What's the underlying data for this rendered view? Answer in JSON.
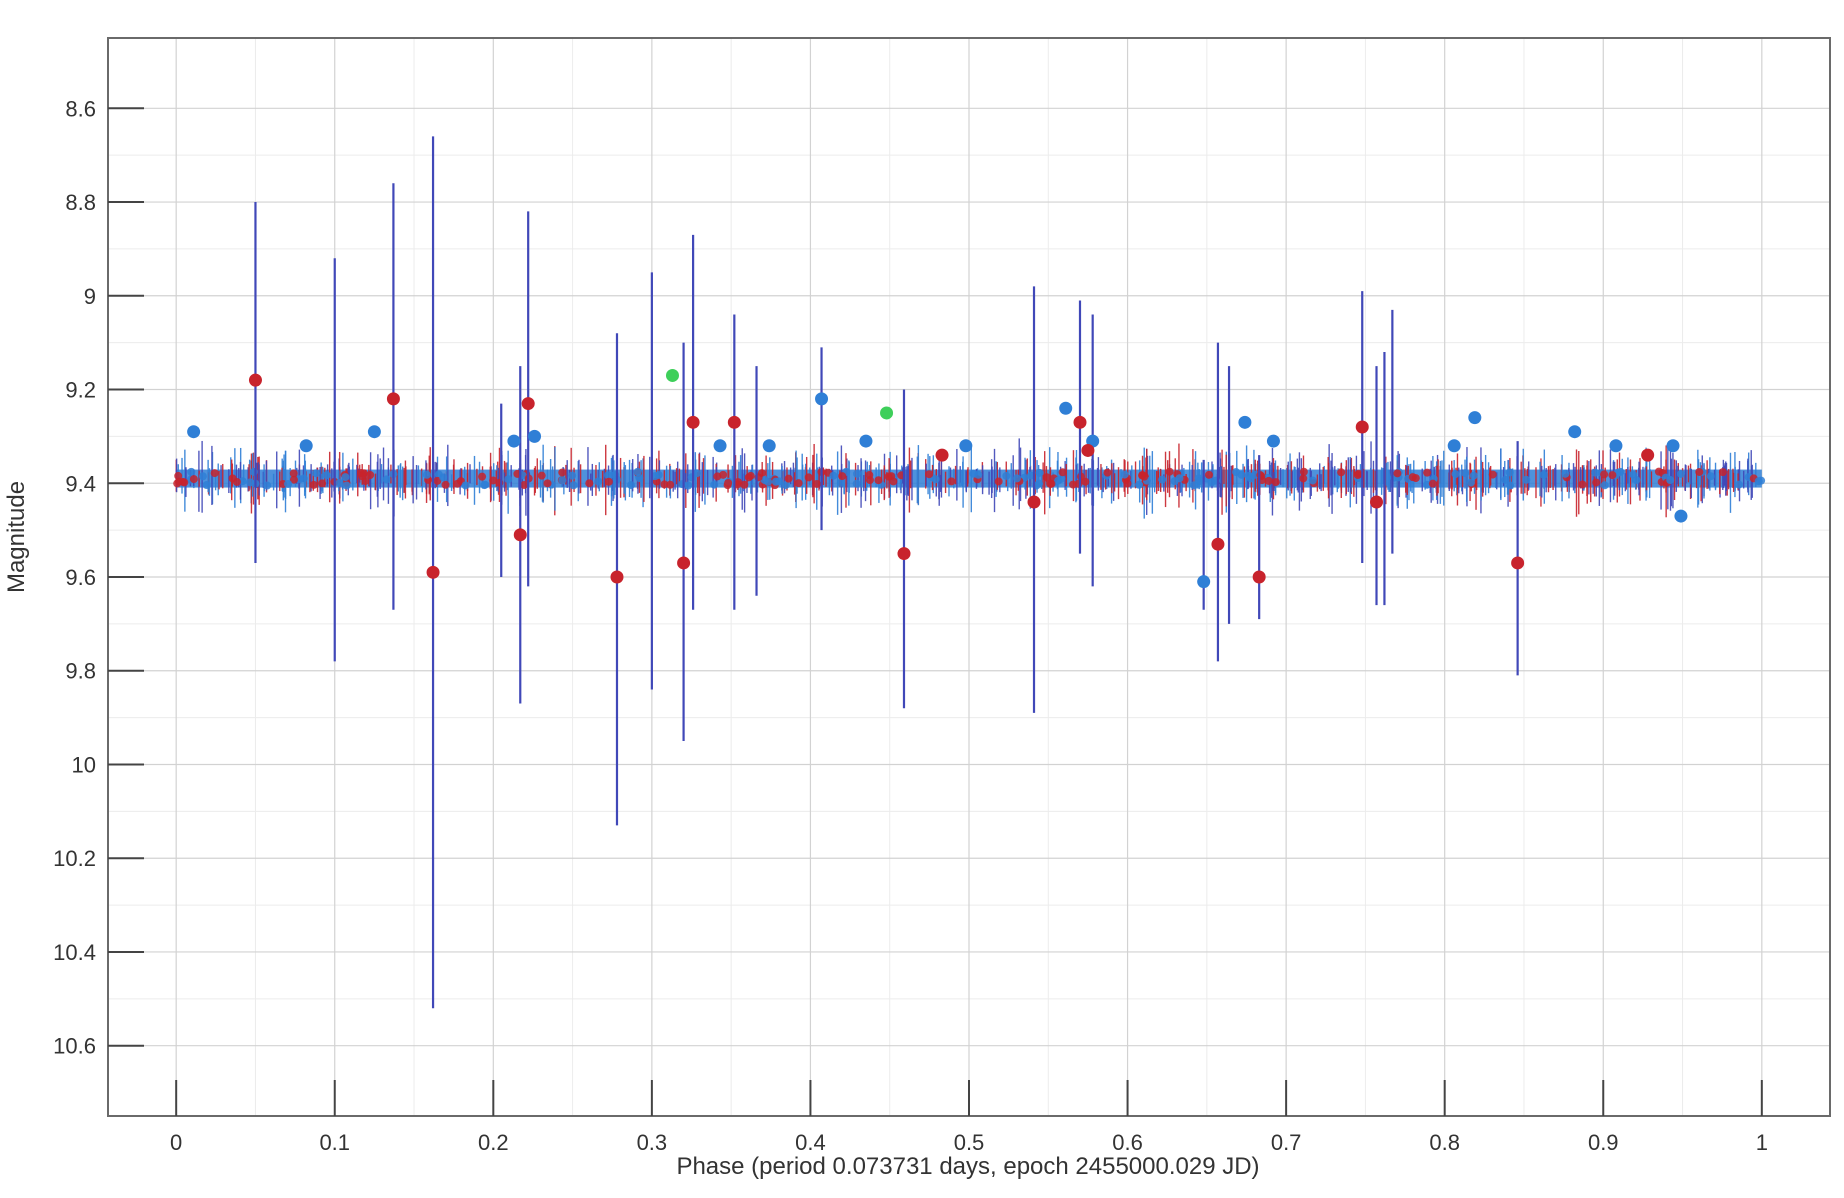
{
  "chart_data": {
    "type": "scatter",
    "title": "",
    "xlabel": "Phase (period 0.073731 days, epoch 2455000.029 JD)",
    "ylabel": "Magnitude",
    "xlim": [
      -0.043,
      1.043
    ],
    "ylim": [
      10.75,
      8.45
    ],
    "y_inverted": true,
    "grid": true,
    "minor_grid": true,
    "x_ticks": [
      {
        "value": 0,
        "label": "0"
      },
      {
        "value": 0.1,
        "label": "0.1"
      },
      {
        "value": 0.2,
        "label": "0.2"
      },
      {
        "value": 0.3,
        "label": "0.3"
      },
      {
        "value": 0.4,
        "label": "0.4"
      },
      {
        "value": 0.5,
        "label": "0.5"
      },
      {
        "value": 0.6,
        "label": "0.6"
      },
      {
        "value": 0.7,
        "label": "0.7"
      },
      {
        "value": 0.8,
        "label": "0.8"
      },
      {
        "value": 0.9,
        "label": "0.9"
      },
      {
        "value": 1,
        "label": "1"
      }
    ],
    "y_ticks": [
      {
        "value": 8.6,
        "label": "8.6"
      },
      {
        "value": 8.8,
        "label": "8.8"
      },
      {
        "value": 9,
        "label": "9"
      },
      {
        "value": 9.2,
        "label": "9.2"
      },
      {
        "value": 9.4,
        "label": "9.4"
      },
      {
        "value": 9.6,
        "label": "9.6"
      },
      {
        "value": 9.8,
        "label": "9.8"
      },
      {
        "value": 10,
        "label": "10"
      },
      {
        "value": 10.2,
        "label": "10.2"
      },
      {
        "value": 10.4,
        "label": "10.4"
      },
      {
        "value": 10.6,
        "label": "10.6"
      }
    ],
    "baseline": {
      "magnitude": 9.39,
      "x_range": [
        0,
        1
      ],
      "colors": [
        "#2f7fd6",
        "#c8232c"
      ]
    },
    "colors": {
      "blue": "#2f7fd6",
      "red": "#c8232c",
      "green": "#3ecf5a",
      "errorbar": "#4048b8"
    },
    "series": [
      {
        "color": "blue",
        "points": [
          {
            "x": 0.011,
            "y": 9.29
          },
          {
            "x": 0.082,
            "y": 9.32
          },
          {
            "x": 0.125,
            "y": 9.29
          },
          {
            "x": 0.213,
            "y": 9.31
          },
          {
            "x": 0.226,
            "y": 9.3
          },
          {
            "x": 0.343,
            "y": 9.32
          },
          {
            "x": 0.374,
            "y": 9.32
          },
          {
            "x": 0.407,
            "y": 9.22
          },
          {
            "x": 0.435,
            "y": 9.31
          },
          {
            "x": 0.498,
            "y": 9.32
          },
          {
            "x": 0.561,
            "y": 9.24
          },
          {
            "x": 0.578,
            "y": 9.31
          },
          {
            "x": 0.648,
            "y": 9.61
          },
          {
            "x": 0.674,
            "y": 9.27
          },
          {
            "x": 0.692,
            "y": 9.31
          },
          {
            "x": 0.806,
            "y": 9.32
          },
          {
            "x": 0.819,
            "y": 9.26
          },
          {
            "x": 0.882,
            "y": 9.29
          },
          {
            "x": 0.908,
            "y": 9.32
          },
          {
            "x": 0.944,
            "y": 9.32
          },
          {
            "x": 0.949,
            "y": 9.47
          }
        ]
      },
      {
        "color": "red",
        "points": [
          {
            "x": 0.05,
            "y": 9.18
          },
          {
            "x": 0.137,
            "y": 9.22
          },
          {
            "x": 0.162,
            "y": 9.59
          },
          {
            "x": 0.217,
            "y": 9.51
          },
          {
            "x": 0.222,
            "y": 9.23
          },
          {
            "x": 0.278,
            "y": 9.6
          },
          {
            "x": 0.32,
            "y": 9.57
          },
          {
            "x": 0.326,
            "y": 9.27
          },
          {
            "x": 0.352,
            "y": 9.27
          },
          {
            "x": 0.459,
            "y": 9.55
          },
          {
            "x": 0.483,
            "y": 9.34
          },
          {
            "x": 0.541,
            "y": 9.44
          },
          {
            "x": 0.57,
            "y": 9.27
          },
          {
            "x": 0.575,
            "y": 9.33
          },
          {
            "x": 0.657,
            "y": 9.53
          },
          {
            "x": 0.683,
            "y": 9.6
          },
          {
            "x": 0.748,
            "y": 9.28
          },
          {
            "x": 0.757,
            "y": 9.44
          },
          {
            "x": 0.846,
            "y": 9.57
          },
          {
            "x": 0.928,
            "y": 9.34
          }
        ]
      },
      {
        "color": "green",
        "points": [
          {
            "x": 0.313,
            "y": 9.17
          },
          {
            "x": 0.448,
            "y": 9.25
          }
        ]
      }
    ],
    "error_bars": [
      {
        "x": 0.05,
        "low": 8.8,
        "high": 9.57
      },
      {
        "x": 0.1,
        "low": 8.92,
        "high": 9.78
      },
      {
        "x": 0.137,
        "low": 8.76,
        "high": 9.67
      },
      {
        "x": 0.162,
        "low": 8.66,
        "high": 10.52
      },
      {
        "x": 0.205,
        "low": 9.23,
        "high": 9.6
      },
      {
        "x": 0.217,
        "low": 9.15,
        "high": 9.87
      },
      {
        "x": 0.222,
        "low": 8.82,
        "high": 9.62
      },
      {
        "x": 0.278,
        "low": 9.08,
        "high": 10.13
      },
      {
        "x": 0.3,
        "low": 8.95,
        "high": 9.84
      },
      {
        "x": 0.32,
        "low": 9.1,
        "high": 9.95
      },
      {
        "x": 0.326,
        "low": 8.87,
        "high": 9.67
      },
      {
        "x": 0.352,
        "low": 9.04,
        "high": 9.67
      },
      {
        "x": 0.366,
        "low": 9.15,
        "high": 9.64
      },
      {
        "x": 0.407,
        "low": 9.11,
        "high": 9.5
      },
      {
        "x": 0.459,
        "low": 9.2,
        "high": 9.88
      },
      {
        "x": 0.541,
        "low": 8.98,
        "high": 9.89
      },
      {
        "x": 0.57,
        "low": 9.01,
        "high": 9.55
      },
      {
        "x": 0.578,
        "low": 9.04,
        "high": 9.62
      },
      {
        "x": 0.648,
        "low": 9.35,
        "high": 9.67
      },
      {
        "x": 0.657,
        "low": 9.1,
        "high": 9.78
      },
      {
        "x": 0.664,
        "low": 9.15,
        "high": 9.7
      },
      {
        "x": 0.683,
        "low": 9.34,
        "high": 9.69
      },
      {
        "x": 0.748,
        "low": 8.99,
        "high": 9.57
      },
      {
        "x": 0.757,
        "low": 9.15,
        "high": 9.66
      },
      {
        "x": 0.762,
        "low": 9.12,
        "high": 9.66
      },
      {
        "x": 0.767,
        "low": 9.03,
        "high": 9.55
      },
      {
        "x": 0.846,
        "low": 9.31,
        "high": 9.81
      }
    ]
  }
}
